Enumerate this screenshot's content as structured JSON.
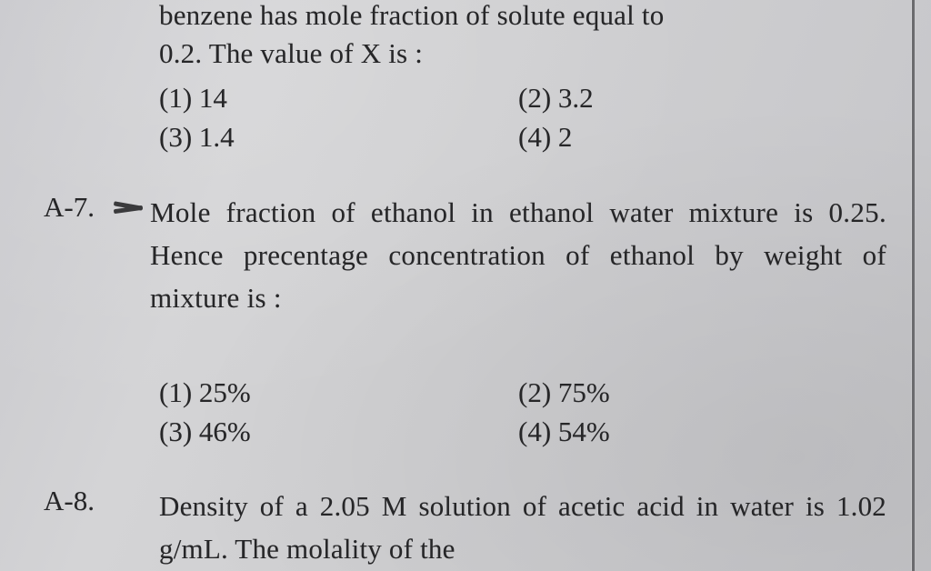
{
  "colors": {
    "paper_bg": "#cfcfd1",
    "ink": "#262628",
    "divider": "#6b6b6e"
  },
  "typography": {
    "body_fontsize_pt": 23,
    "font_family": "serif",
    "line_height": 1.5
  },
  "q6": {
    "stem_line1": "benzene has mole fraction of solute equal to",
    "stem_line2": "0.2. The value of X is :",
    "options": {
      "o1": "(1) 14",
      "o2": "(2) 3.2",
      "o3": "(3) 1.4",
      "o4": "(4) 2"
    }
  },
  "q7": {
    "number": "A-7.",
    "stem": "Mole fraction of ethanol in ethanol water mixture is 0.25. Hence precentage concentration of ethanol by weight of mixture is :",
    "options": {
      "o1": "(1) 25%",
      "o2": "(2) 75%",
      "o3": "(3) 46%",
      "o4": "(4) 54%"
    }
  },
  "q8": {
    "number": "A-8.",
    "stem": "Density of a 2.05 M solution of acetic acid in water is 1.02 g/mL. The molality of the"
  }
}
